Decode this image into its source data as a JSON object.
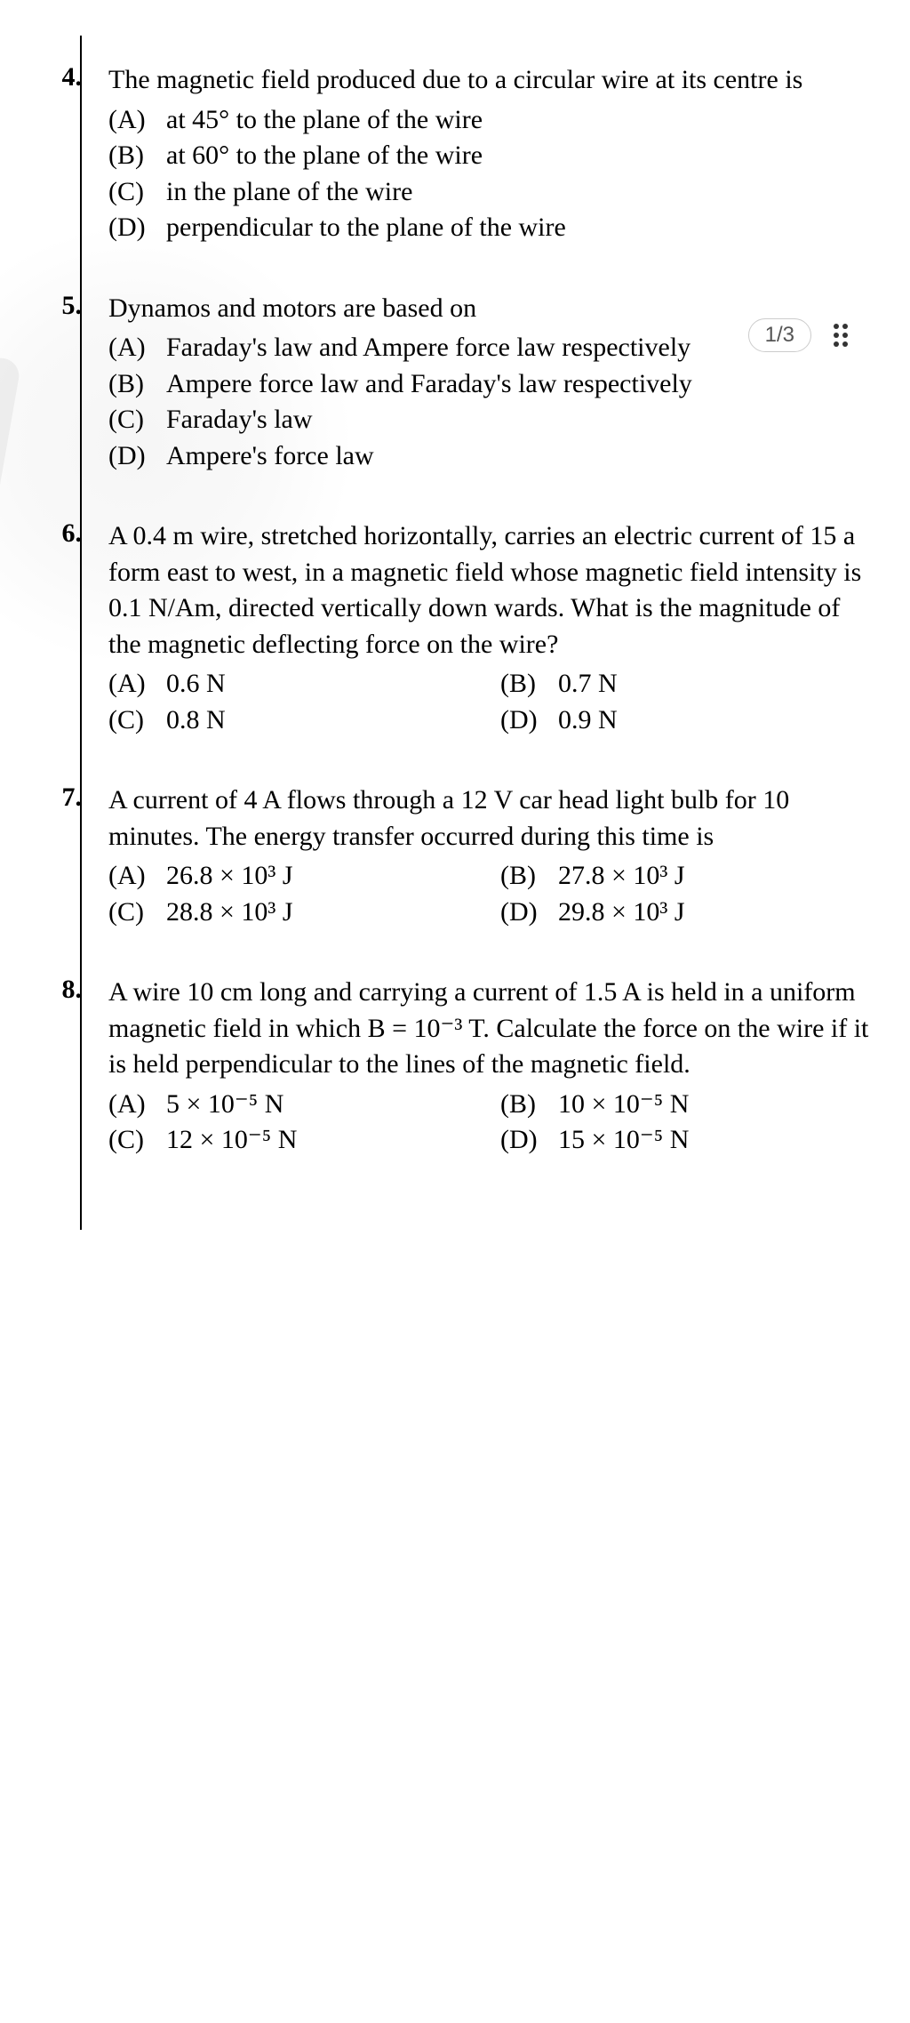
{
  "page_indicator": "1/3",
  "questions": [
    {
      "number": "4.",
      "text": "The magnetic field produced due to a circular wire at its centre is",
      "options": [
        {
          "label": "(A)",
          "text": "at 45° to the plane of the wire"
        },
        {
          "label": "(B)",
          "text": "at 60° to the plane of the wire"
        },
        {
          "label": "(C)",
          "text": "in the plane of the wire"
        },
        {
          "label": "(D)",
          "text": "perpendicular to the plane of the wire"
        }
      ]
    },
    {
      "number": "5.",
      "text": "Dynamos and motors are based on",
      "options": [
        {
          "label": "(A)",
          "text": "Faraday's law and Ampere force law respectively"
        },
        {
          "label": "(B)",
          "text": "Ampere force law and Faraday's law respectively"
        },
        {
          "label": "(C)",
          "text": "Faraday's law"
        },
        {
          "label": "(D)",
          "text": "Ampere's force law"
        }
      ]
    },
    {
      "number": "6.",
      "text": "A 0.4 m wire, stretched horizontally, carries an electric current of 15 a form east to west, in a magnetic field whose magnetic field intensity is 0.1 N/Am, directed vertically down wards. What is the magnitude of the magnetic deflecting force on the wire?",
      "options": [
        {
          "label": "(A)",
          "text": "0.6 N"
        },
        {
          "label": "(B)",
          "text": "0.7 N"
        },
        {
          "label": "(C)",
          "text": "0.8 N"
        },
        {
          "label": "(D)",
          "text": "0.9 N"
        }
      ]
    },
    {
      "number": "7.",
      "text": "A current of 4 A flows through a 12 V car head light bulb for 10 minutes. The energy transfer occurred during this time is",
      "options": [
        {
          "label": "(A)",
          "text": "26.8 × 10³ J"
        },
        {
          "label": "(B)",
          "text": "27.8 × 10³ J"
        },
        {
          "label": "(C)",
          "text": "28.8 × 10³ J"
        },
        {
          "label": "(D)",
          "text": "29.8 × 10³ J"
        }
      ]
    },
    {
      "number": "8.",
      "text": "A wire 10 cm long and carrying a current of 1.5 A is held in a uniform magnetic field in which B = 10⁻³ T. Calculate the force on the wire if it is held perpendicular to the lines of the magnetic field.",
      "options": [
        {
          "label": "(A)",
          "text": "5 × 10⁻⁵ N"
        },
        {
          "label": "(B)",
          "text": "10 × 10⁻⁵ N"
        },
        {
          "label": "(C)",
          "text": "12 × 10⁻⁵ N"
        },
        {
          "label": "(D)",
          "text": "15 × 10⁻⁵ N"
        }
      ]
    }
  ]
}
